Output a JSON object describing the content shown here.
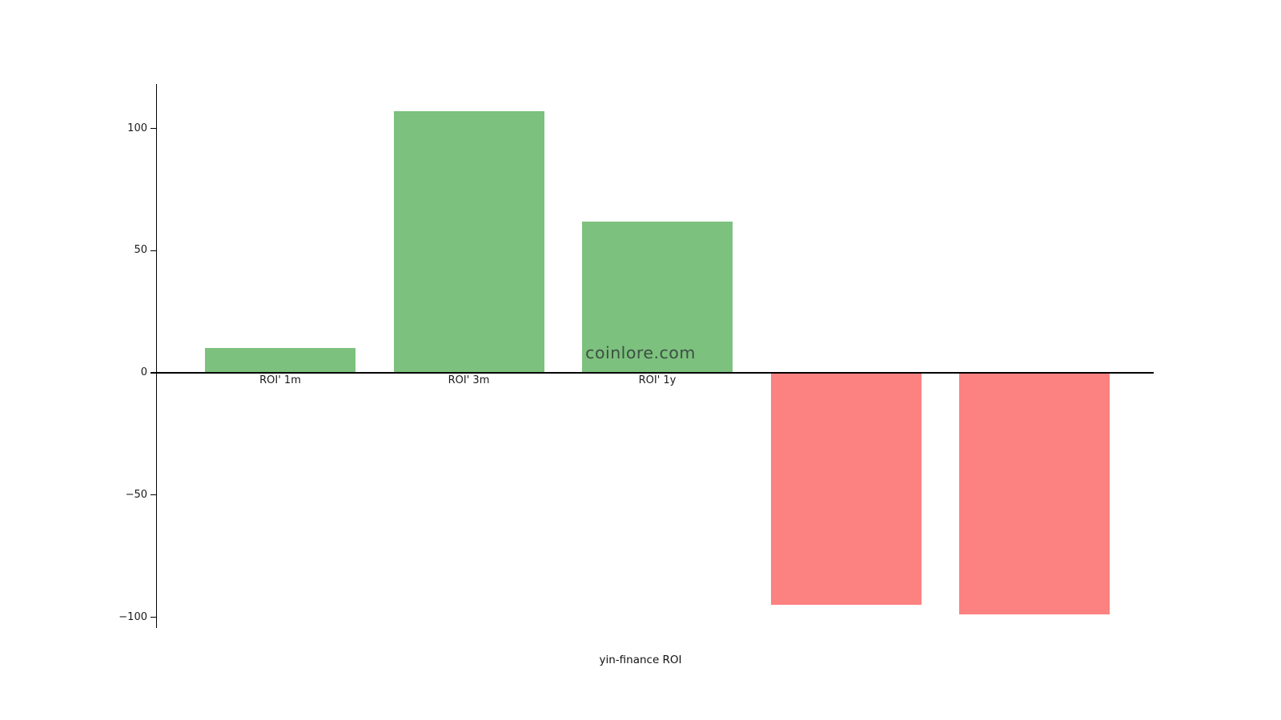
{
  "chart_data": {
    "type": "bar",
    "categories": [
      "ROI' 1m",
      "ROI' 3m",
      "ROI' 1y",
      "",
      ""
    ],
    "values": [
      10,
      107,
      62,
      -95,
      -99
    ],
    "series": [
      {
        "name": "yin-finance ROI %",
        "values": [
          10,
          107,
          62,
          -95,
          -99
        ]
      }
    ],
    "title": "yin-finance ROI",
    "xlabel": "yin-finance ROI",
    "ylabel": "",
    "ylim": [
      -104,
      118
    ],
    "yticks": [
      100,
      50,
      0,
      -50,
      -100
    ],
    "ytick_labels": [
      "100",
      "50",
      "0",
      "−50",
      "−100"
    ],
    "grid": false,
    "legend_position": "none",
    "positive_color": "#7cc17d",
    "negative_color": "#fc8181",
    "axis_color": "#000000",
    "tick_text_color": "#1a1a1a",
    "watermark": "coinlore.com",
    "watermark_color": "#3c4f43"
  }
}
